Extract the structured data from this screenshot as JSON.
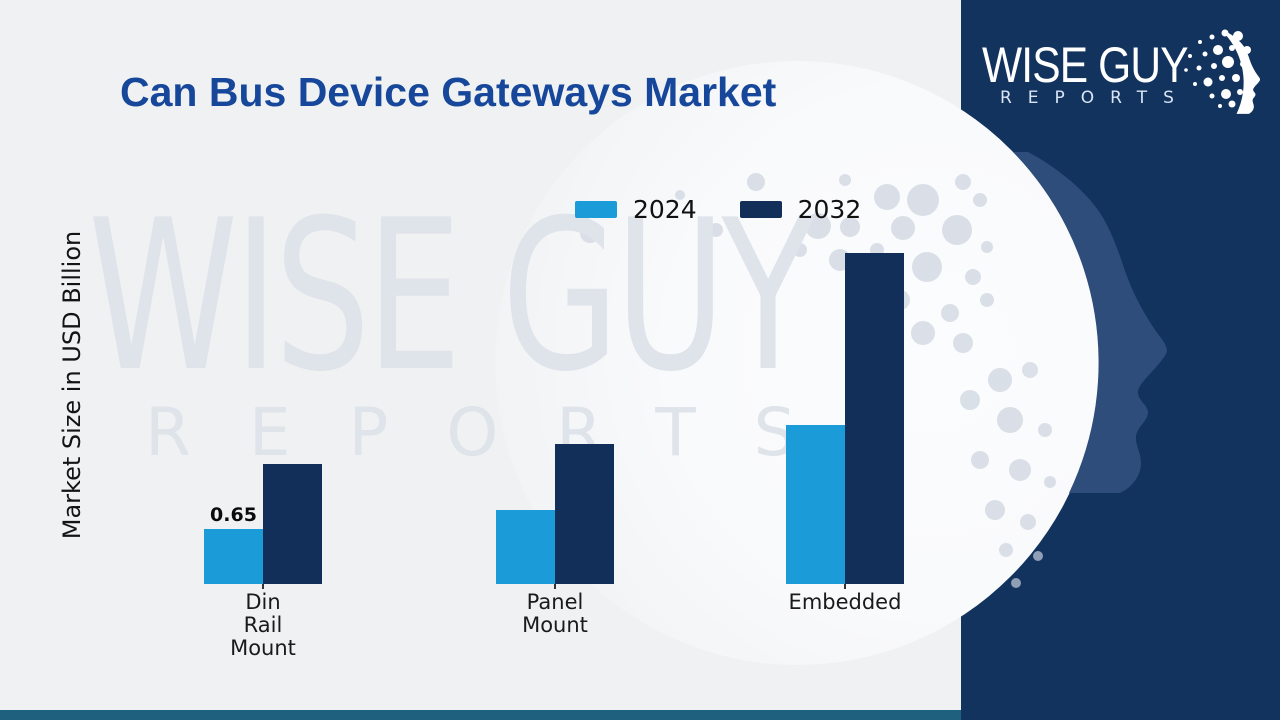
{
  "page": {
    "background_color": "#f0f1f2",
    "accent_bar_color": "#1f607f"
  },
  "title": {
    "text": "Can Bus Device Gateways Market",
    "color": "#16479a"
  },
  "y_axis_label": "Market Size in USD Billion",
  "watermark": {
    "line1": "WISE GUY",
    "line2": "REPORTS"
  },
  "logo": {
    "line1": "WISE GUY",
    "line2": "REPORTS"
  },
  "chart_data": {
    "type": "bar",
    "title": "Can Bus Device Gateways Market",
    "xlabel": "",
    "ylabel": "Market Size in USD Billion",
    "unit": "USD Billion",
    "categories": [
      "Din Rail Mount",
      "Panel Mount",
      "Embedded"
    ],
    "category_display_lines": [
      [
        "Din",
        "Rail",
        "Mount"
      ],
      [
        "Panel",
        "Mount"
      ],
      [
        "Embedded"
      ]
    ],
    "series": [
      {
        "name": "2024",
        "color": "#1b9bd8",
        "values": [
          0.65,
          0.88,
          1.88
        ],
        "data_labels": [
          "0.65",
          "",
          ""
        ]
      },
      {
        "name": "2032",
        "color": "#122f5a",
        "values": [
          1.42,
          1.65,
          3.91
        ],
        "data_labels": [
          "",
          "",
          ""
        ]
      }
    ],
    "ylim": [
      0,
      4.2
    ],
    "grid": false,
    "legend_position": "top-right"
  }
}
